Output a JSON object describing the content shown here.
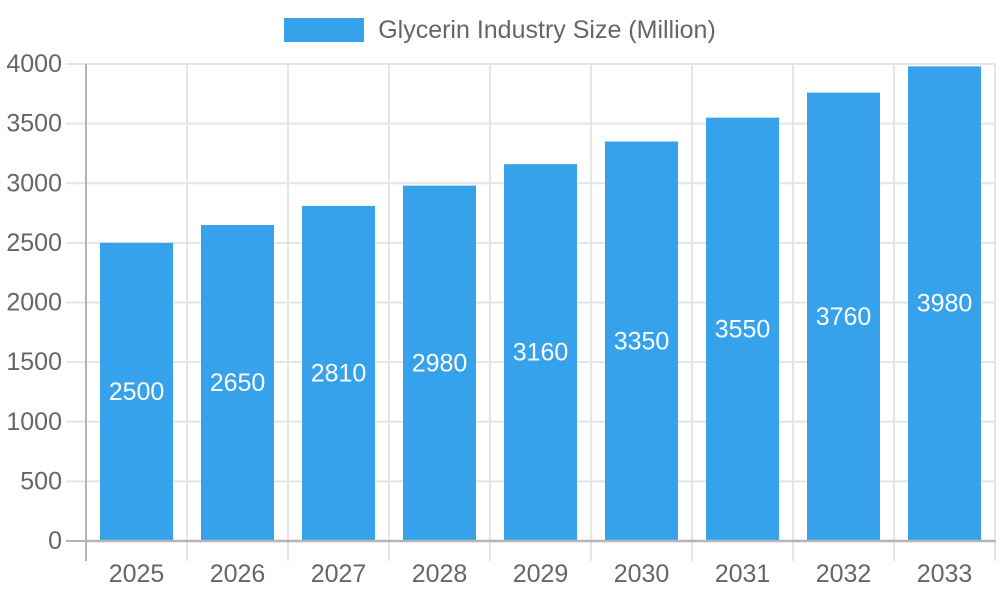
{
  "legend": {
    "label": "Glycerin Industry Size (Million)"
  },
  "chart_data": {
    "type": "bar",
    "title": "",
    "legend_entries": [
      "Glycerin Industry Size (Million)"
    ],
    "legend_position": "top",
    "categories": [
      "2025",
      "2026",
      "2027",
      "2028",
      "2029",
      "2030",
      "2031",
      "2032",
      "2033"
    ],
    "series": [
      {
        "name": "Glycerin Industry Size (Million)",
        "values": [
          2500,
          2650,
          2810,
          2980,
          3160,
          3350,
          3550,
          3760,
          3980
        ]
      }
    ],
    "bar_value_labels": [
      "2500",
      "2650",
      "2810",
      "2980",
      "3160",
      "3350",
      "3550",
      "3760",
      "3980"
    ],
    "xlabel": "",
    "ylabel": "",
    "ylim": [
      0,
      4000
    ],
    "ytick_interval": 500,
    "ytick_labels": [
      "0",
      "500",
      "1000",
      "1500",
      "2000",
      "2500",
      "3000",
      "3500",
      "4000"
    ],
    "grid": true,
    "value_label_position": "inside-center",
    "colors": {
      "bar": "#36a2eb",
      "label_text": "#666666",
      "grid": "#e5e5e5",
      "zero_line": "#b5b5b5",
      "bar_label": "#ffffff",
      "background": "#ffffff"
    }
  }
}
